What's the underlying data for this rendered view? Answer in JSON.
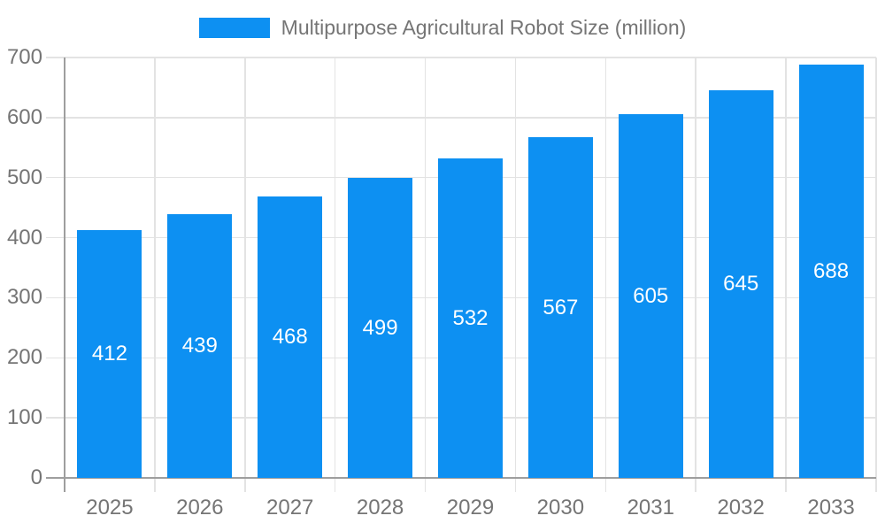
{
  "legend": {
    "label": "Multipurpose Agricultural Robot Size (million)"
  },
  "colors": {
    "bar": "#0d90f2",
    "axis_text": "#757575",
    "grid": "#e3e3e3",
    "axis_line": "#9e9e9e",
    "value_text": "#ffffff",
    "background": "#ffffff"
  },
  "chart_data": {
    "type": "bar",
    "title": "Multipurpose Agricultural Robot Size (million)",
    "categories": [
      "2025",
      "2026",
      "2027",
      "2028",
      "2029",
      "2030",
      "2031",
      "2032",
      "2033"
    ],
    "values": [
      412,
      439,
      468,
      499,
      532,
      567,
      605,
      645,
      688
    ],
    "xlabel": "",
    "ylabel": "",
    "ylim": [
      0,
      700
    ],
    "yticks": [
      0,
      100,
      200,
      300,
      400,
      500,
      600,
      700
    ],
    "grid": true,
    "legend_position": "top",
    "value_label_position": "inside-center"
  }
}
